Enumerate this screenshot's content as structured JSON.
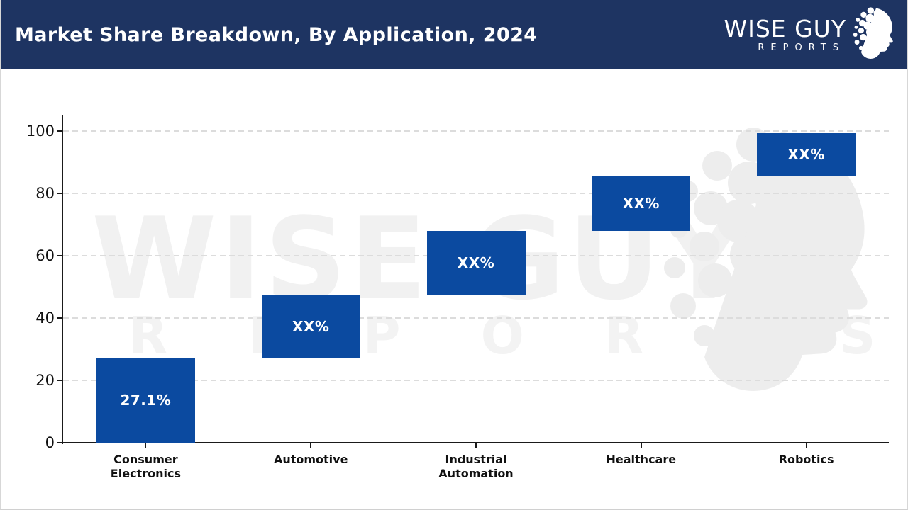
{
  "header": {
    "title": "Market Share Breakdown, By Application, 2024",
    "bg_color": "#1e3462",
    "text_color": "#ffffff",
    "logo": {
      "line1": "WISE GUY",
      "line2": "REPORTS",
      "face_icon": "dotted-head-profile-icon"
    }
  },
  "watermark": {
    "line1": "WISE GUY",
    "line2": "R E P O R T S",
    "face_icon": "dotted-head-profile-icon",
    "color": "#f1f1f1"
  },
  "chart_data": {
    "type": "bar",
    "subtype": "waterfall",
    "title": "Market Share Breakdown, By Application, 2024",
    "xlabel": "",
    "ylabel": "",
    "ylim": [
      0,
      105
    ],
    "yticks": [
      0,
      20,
      40,
      60,
      80,
      100
    ],
    "grid": "horizontal dashed",
    "legend": "none",
    "categories": [
      "Consumer Electronics",
      "Automotive",
      "Industrial Automation",
      "Healthcare",
      "Robotics"
    ],
    "category_label_lines": [
      [
        "Consumer",
        "Electronics"
      ],
      [
        "Automotive"
      ],
      [
        "Industrial",
        "Automation"
      ],
      [
        "Healthcare"
      ],
      [
        "Robotics"
      ]
    ],
    "segments": [
      {
        "category": "Consumer Electronics",
        "start": 0,
        "end": 27.1,
        "label": "27.1%"
      },
      {
        "category": "Automotive",
        "start": 27.1,
        "end": 47.5,
        "label": "XX%"
      },
      {
        "category": "Industrial Automation",
        "start": 47.5,
        "end": 68.0,
        "label": "XX%"
      },
      {
        "category": "Healthcare",
        "start": 68.0,
        "end": 85.5,
        "label": "XX%"
      },
      {
        "category": "Robotics",
        "start": 85.5,
        "end": 99.4,
        "label": "XX%"
      }
    ],
    "bar_color": "#0b4aa0",
    "bar_label_color": "#ffffff",
    "axis_color": "#1a1a1a",
    "grid_color": "#dcdcdc",
    "tick_label_color": "#111111"
  }
}
